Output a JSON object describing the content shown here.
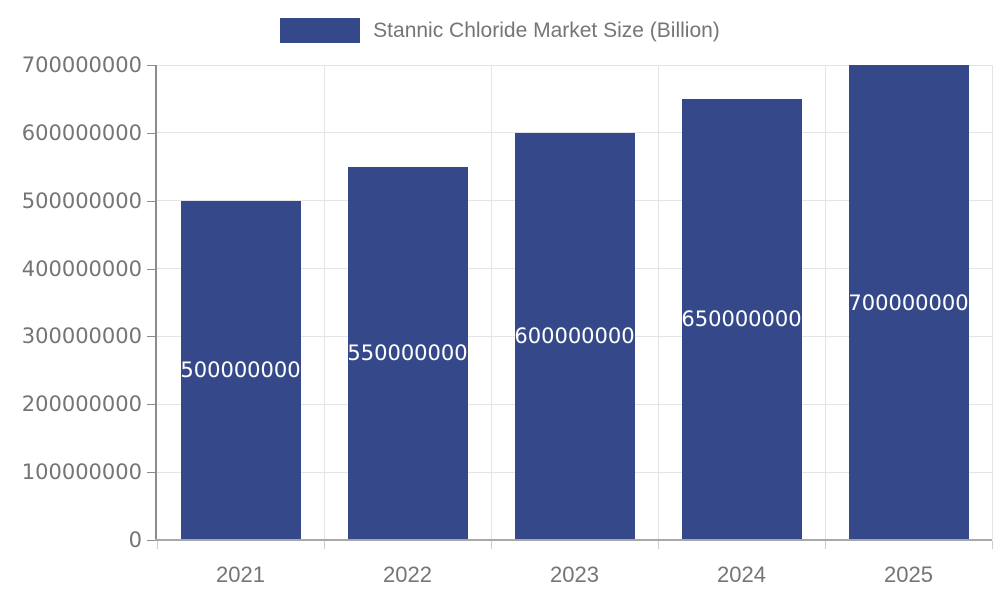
{
  "legend": {
    "label": "Stannic Chloride Market Size (Billion)"
  },
  "chart_data": {
    "type": "bar",
    "title": "Stannic Chloride Market Size (Billion)",
    "categories": [
      "2021",
      "2022",
      "2023",
      "2024",
      "2025"
    ],
    "values": [
      500000000,
      550000000,
      600000000,
      650000000,
      700000000
    ],
    "xlabel": "",
    "ylabel": "",
    "ylim": [
      0,
      700000000
    ],
    "y_ticks": [
      0,
      100000000,
      200000000,
      300000000,
      400000000,
      500000000,
      600000000,
      700000000
    ],
    "grid": true,
    "legend_position": "top-center",
    "data_label_position": "inside-center",
    "colors": {
      "bar": "#35498A",
      "grid": "#E4E4E4",
      "axis_y": "#8C8C8C",
      "axis_x": "#A8A8A8",
      "tick_label": "#757575",
      "data_label": "#FFFFFF",
      "background": "#FFFFFF"
    }
  }
}
